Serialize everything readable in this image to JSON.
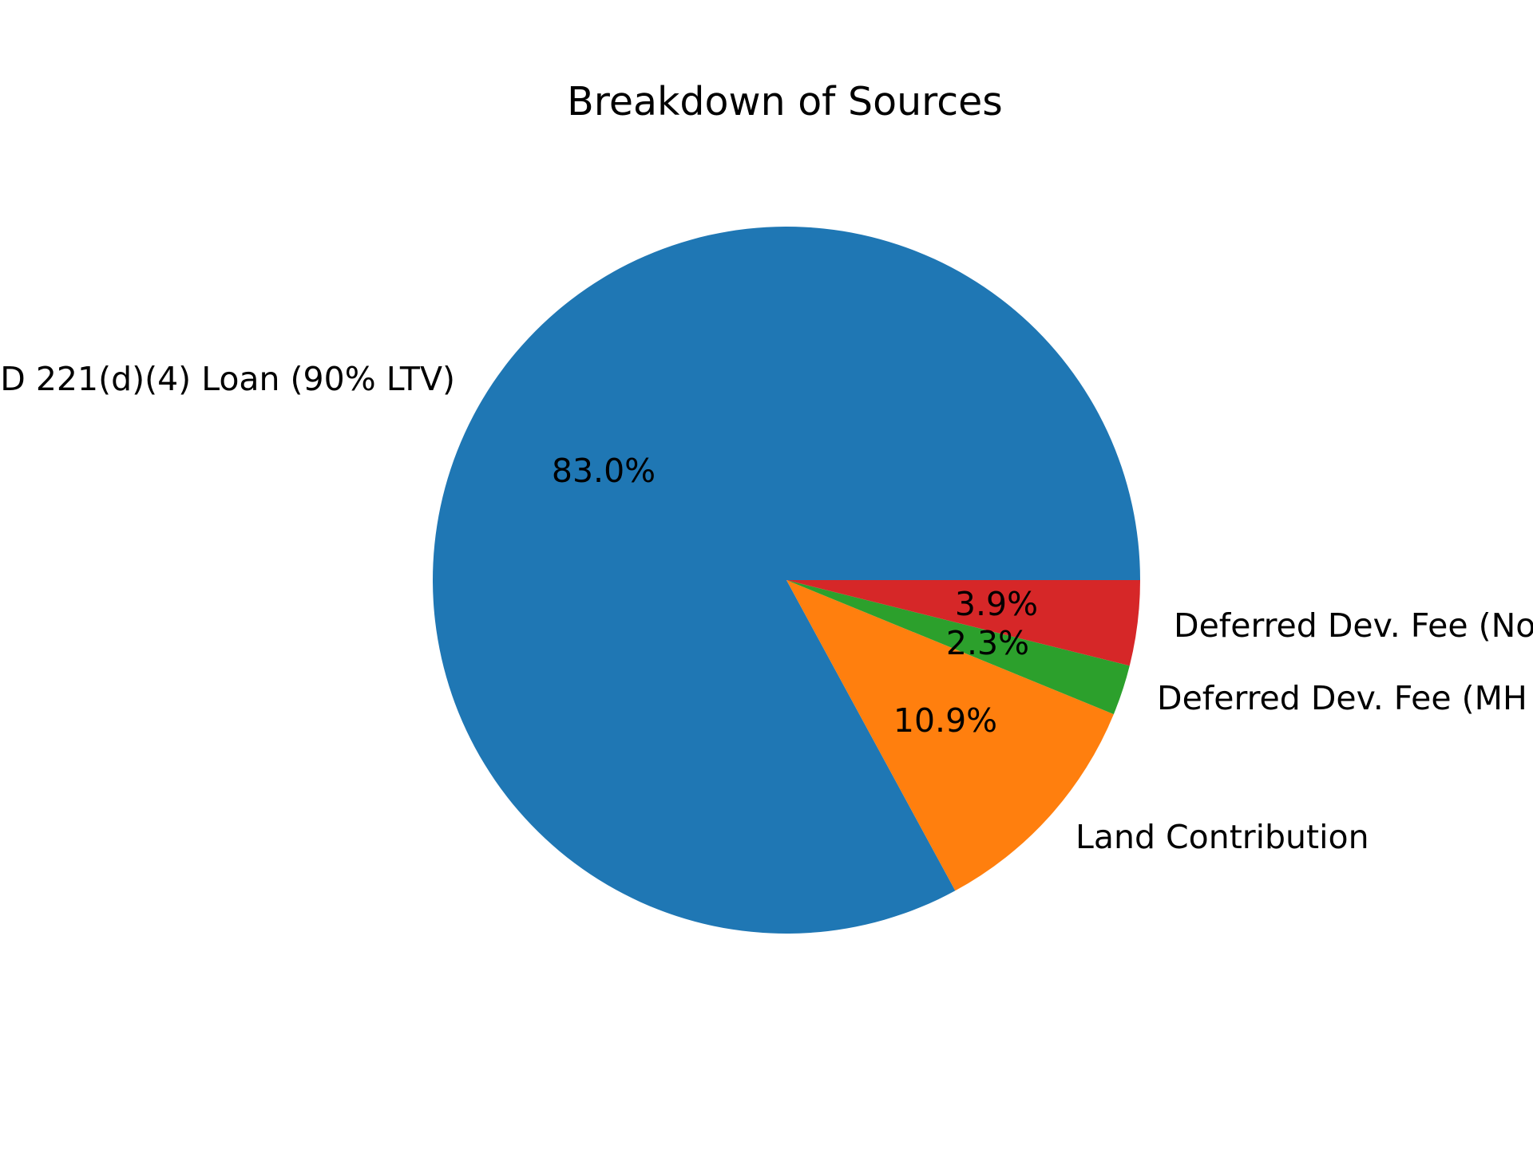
{
  "chart_data": {
    "type": "pie",
    "title": "Breakdown of Sources",
    "startangle": 0,
    "counterclock": true,
    "legend": "none",
    "background_color": "#ffffff",
    "text_color": "#000000",
    "slices": [
      {
        "label": "D 221(d)(4) Loan (90% LTV)",
        "value": 83.0,
        "pct_label": "83.0%",
        "color": "#1f77b4"
      },
      {
        "label": "Land Contribution",
        "value": 10.9,
        "pct_label": "10.9%",
        "color": "#ff7f0e"
      },
      {
        "label": "Deferred Dev. Fee (MH",
        "value": 2.3,
        "pct_label": "2.3%",
        "color": "#2ca02c"
      },
      {
        "label": "Deferred Dev. Fee (No",
        "value": 3.9,
        "pct_label": "3.9%",
        "color": "#d62728"
      }
    ]
  }
}
